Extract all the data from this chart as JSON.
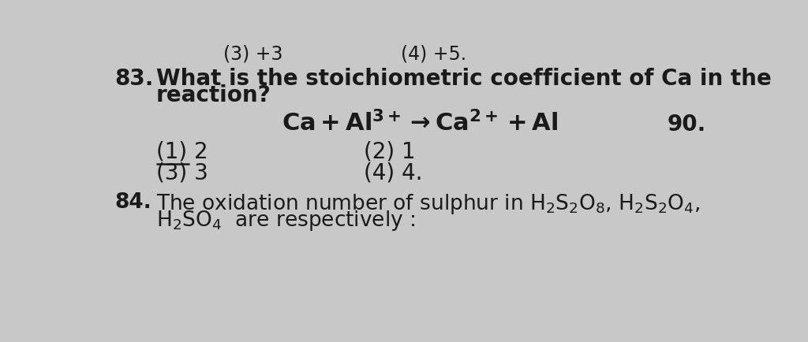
{
  "bg_color": "#c8c8c8",
  "top_left_text": "(3) +3",
  "top_right_text": "(4) +5.",
  "q83_number": "83.",
  "q83_question_line1": "What is the stoichiometric coefficient of Ca in the",
  "q83_question_line2": "reaction?",
  "number_90": "90.",
  "option1": "(1) 2",
  "option2": "(2) 1",
  "option3": "(3) 3",
  "option4": "(4) 4.",
  "q84_number": "84.",
  "q84_line1_prefix": "The oxidation number of sulphur in ",
  "q84_line2": "H S O  are respectively :",
  "font_size_top": 17,
  "font_size_main": 20,
  "font_size_reaction": 22,
  "font_size_q84": 19,
  "text_color": "#1a1a1a"
}
